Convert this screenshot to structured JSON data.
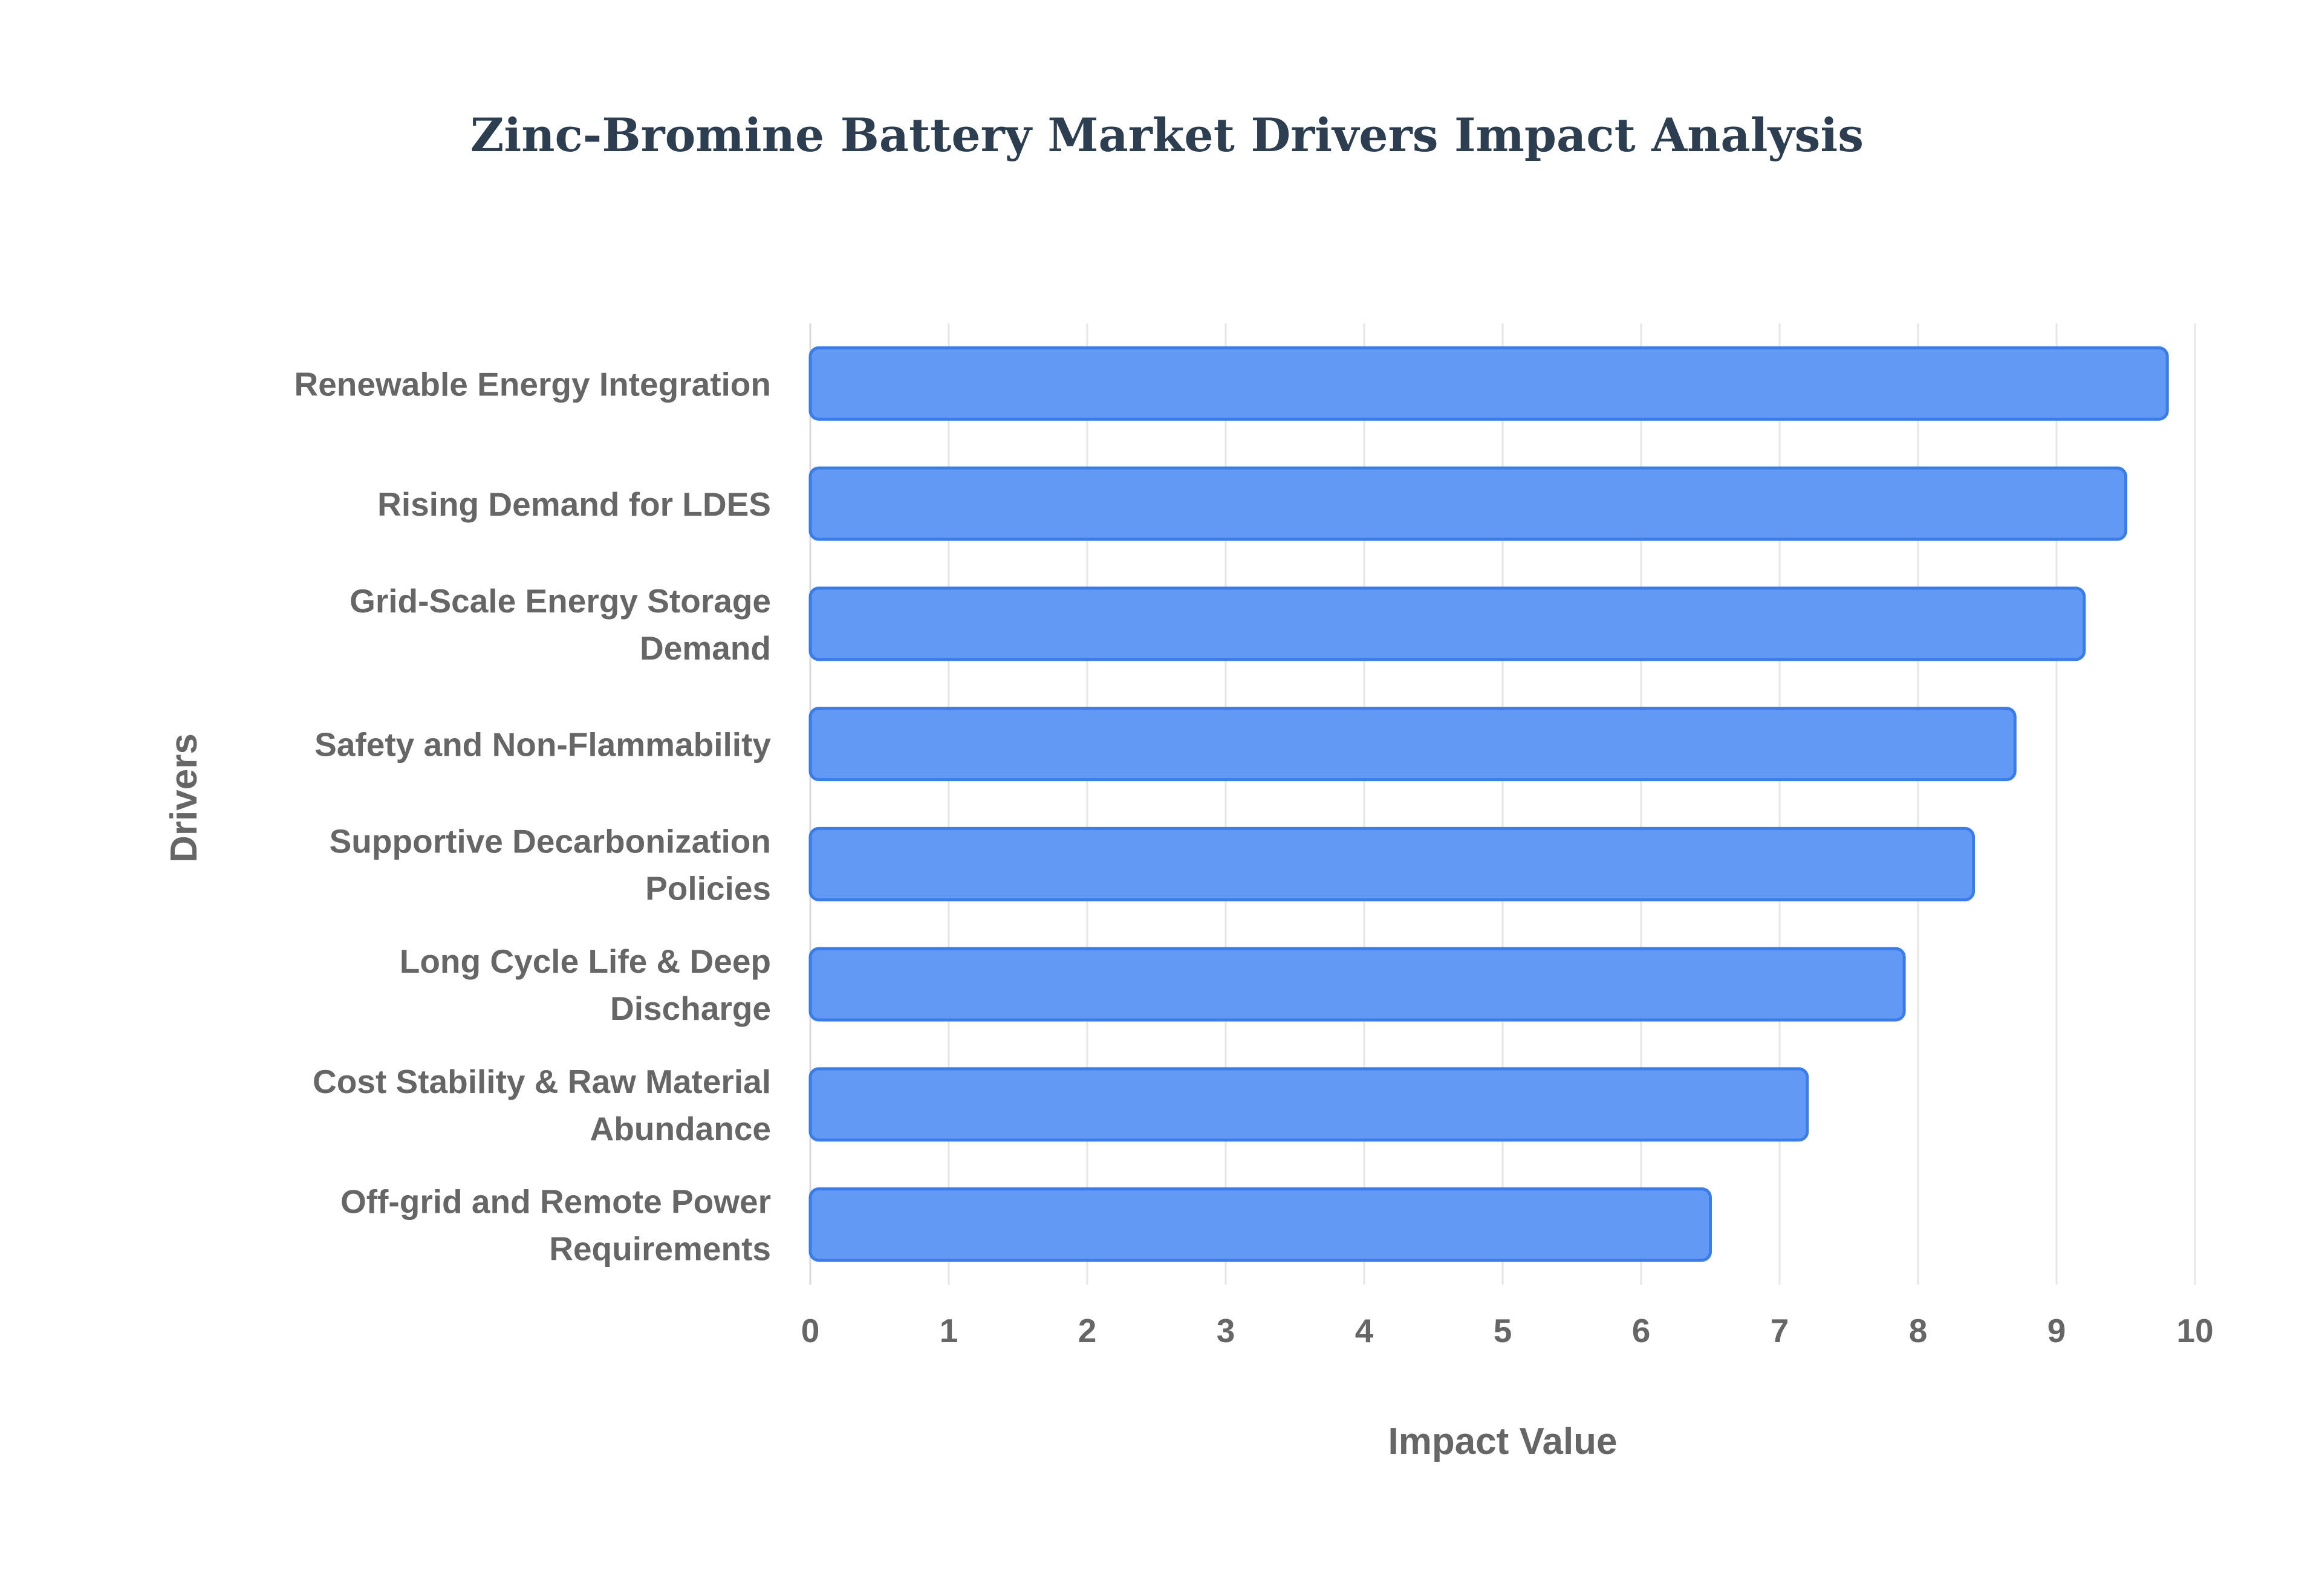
{
  "chart_data": {
    "type": "bar",
    "orientation": "horizontal",
    "title": "Zinc-Bromine Battery Market Drivers Impact Analysis",
    "xlabel": "Impact Value",
    "ylabel": "Drivers",
    "xlim": [
      0,
      10
    ],
    "xticks": [
      "0",
      "1",
      "2",
      "3",
      "4",
      "5",
      "6",
      "7",
      "8",
      "9",
      "10"
    ],
    "grid": true,
    "legend": "none",
    "bar_color": "#6199f5",
    "bar_border_color": "#3b7de8",
    "categories": [
      [
        "Renewable Energy Integration"
      ],
      [
        "Rising Demand for LDES"
      ],
      [
        "Grid-Scale Energy Storage",
        "Demand"
      ],
      [
        "Safety and Non-Flammability"
      ],
      [
        "Supportive Decarbonization",
        "Policies"
      ],
      [
        "Long Cycle Life & Deep",
        "Discharge"
      ],
      [
        "Cost Stability & Raw Material",
        "Abundance"
      ],
      [
        "Off-grid and Remote Power",
        "Requirements"
      ]
    ],
    "values": [
      9.8,
      9.5,
      9.2,
      8.7,
      8.4,
      7.9,
      7.2,
      6.5
    ]
  }
}
